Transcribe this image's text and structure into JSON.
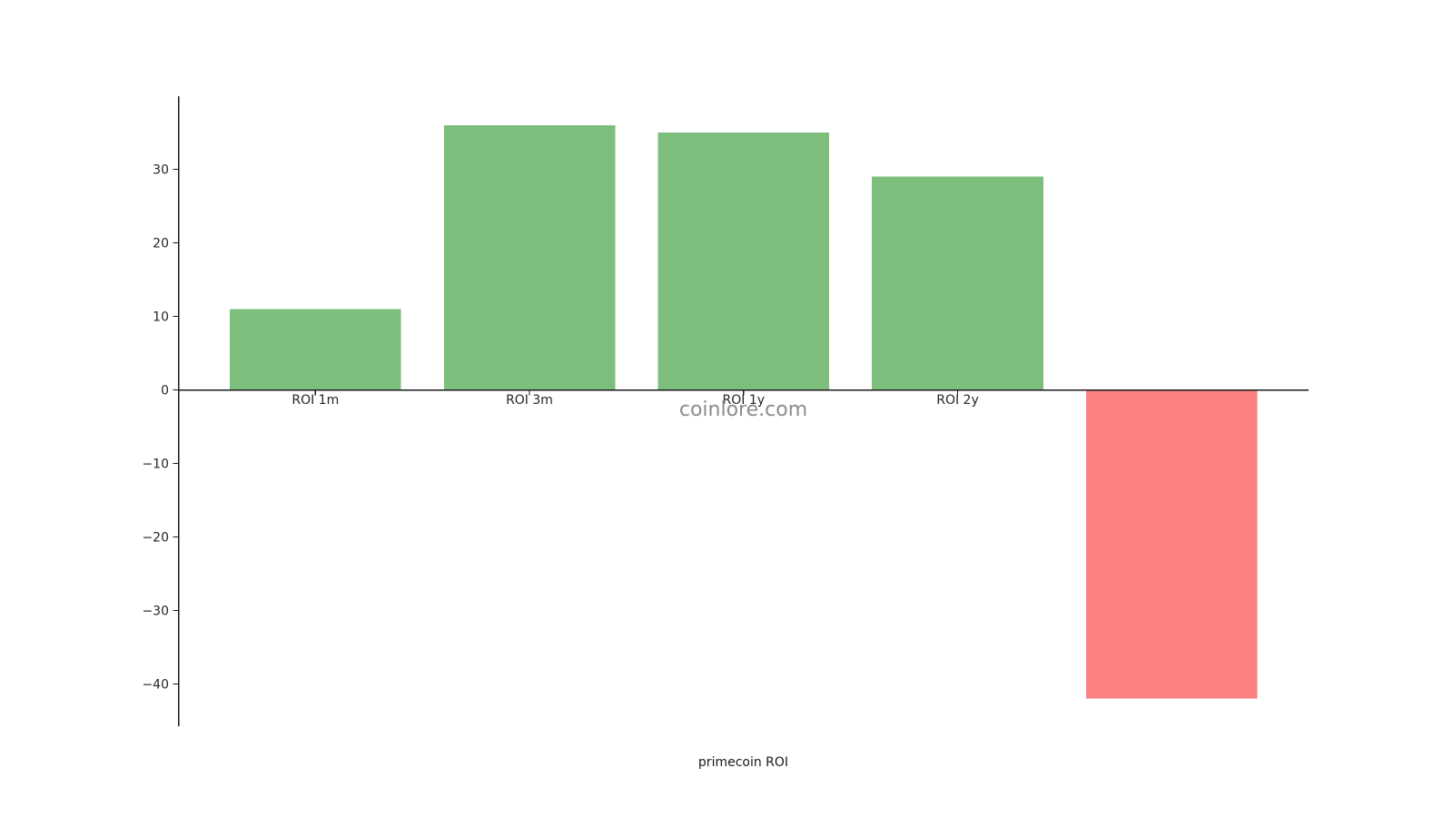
{
  "page": {
    "background_color": "#ffffff"
  },
  "chart_data": {
    "type": "bar",
    "title": "",
    "xlabel": "primecoin ROI",
    "ylabel": "",
    "categories": [
      "ROI 1m",
      "ROI 3m",
      "ROI 1y",
      "ROI 2y",
      ""
    ],
    "values": [
      11,
      36,
      35,
      29,
      -42
    ],
    "yticks": [
      30,
      20,
      10,
      0,
      -10,
      -20,
      -30,
      -40
    ],
    "ylim": [
      -45.9,
      39.9
    ],
    "grid": false,
    "legend_position": "none",
    "positive_color": "#7dbe7d",
    "negative_color": "#fc8181",
    "axis_color": "#1a1a1a",
    "tick_label_color": "#262626",
    "watermark": "coinlore.com",
    "watermark_color": "#8c8c8c"
  }
}
